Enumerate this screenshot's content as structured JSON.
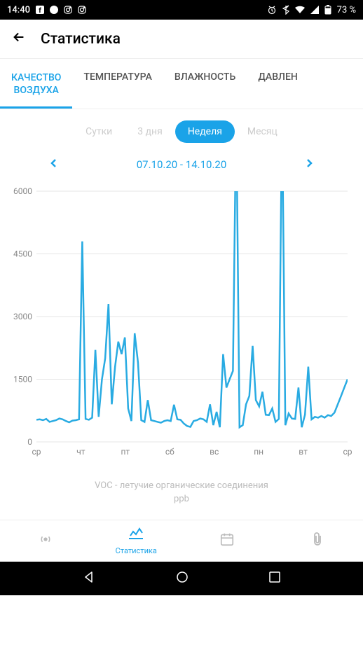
{
  "status": {
    "time": "14:40",
    "battery": "73 %"
  },
  "header": {
    "title": "Статистика"
  },
  "tabs": [
    {
      "label": "КАЧЕСТВО\nВОЗДУХА",
      "active": true
    },
    {
      "label": "ТЕМПЕРАТУРА",
      "active": false
    },
    {
      "label": "ВЛАЖНОСТЬ",
      "active": false
    },
    {
      "label": "ДАВЛЕН",
      "active": false
    }
  ],
  "periods": [
    {
      "label": "Сутки",
      "active": false
    },
    {
      "label": "3 дня",
      "active": false
    },
    {
      "label": "Неделя",
      "active": true
    },
    {
      "label": "Месяц",
      "active": false
    }
  ],
  "date_range": "07.10.20 - 14.10.20",
  "chart": {
    "type": "line",
    "ylim": [
      0,
      6000
    ],
    "yticks": [
      0,
      1500,
      3000,
      4500,
      6000
    ],
    "x_labels": [
      "ср",
      "чт",
      "пт",
      "сб",
      "вс",
      "пн",
      "вт",
      "ср"
    ],
    "line_color": "#29abe2",
    "line_width": 2.5,
    "grid_color": "#e5e5e5",
    "tick_color": "#888888",
    "label_fontsize": 12,
    "series": [
      530,
      540,
      520,
      550,
      480,
      500,
      520,
      560,
      540,
      500,
      470,
      510,
      520,
      540,
      4800,
      550,
      530,
      580,
      2200,
      600,
      1500,
      2000,
      3300,
      900,
      1800,
      2400,
      2100,
      2500,
      800,
      500,
      2600,
      1900,
      520,
      480,
      1000,
      520,
      500,
      480,
      460,
      500,
      520,
      500,
      890,
      540,
      530,
      440,
      380,
      360,
      500,
      520,
      560,
      540,
      480,
      900,
      400,
      720,
      350,
      2100,
      1300,
      1500,
      1700,
      8000,
      350,
      400,
      900,
      1100,
      2300,
      1000,
      850,
      1200,
      650,
      640,
      800,
      480,
      550,
      8000,
      400,
      680,
      560,
      550,
      1300,
      350,
      650,
      1800,
      540,
      600,
      580,
      620,
      580,
      640,
      620,
      700,
      900,
      1100,
      1300,
      1500
    ]
  },
  "footer": {
    "line1": "VOC - летучие органические соединения",
    "line2": "ppb"
  },
  "bottom_nav": {
    "stats_label": "Статистика"
  },
  "colors": {
    "accent": "#1aa3e8",
    "muted": "#bbbbbb"
  }
}
